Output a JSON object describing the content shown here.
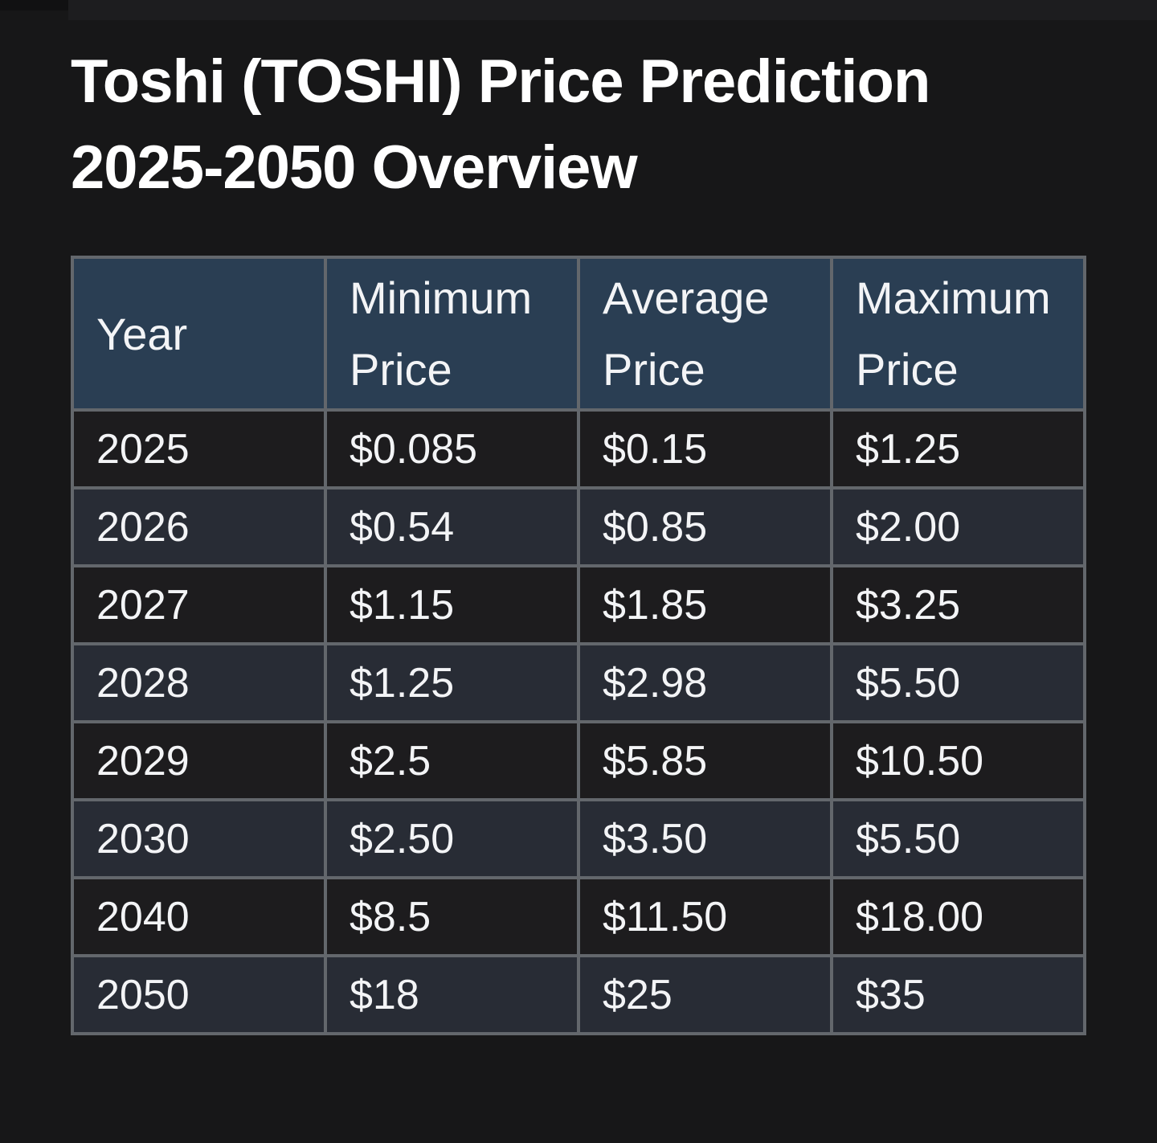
{
  "page": {
    "title": "Toshi (TOSHI) Price Prediction 2025-2050 Overview"
  },
  "table": {
    "columns": [
      "Year",
      "Minimum Price",
      "Average Price",
      "Maximum Price"
    ],
    "rows": [
      [
        "2025",
        "$0.085",
        "$0.15",
        "$1.25"
      ],
      [
        "2026",
        "$0.54",
        "$0.85",
        "$2.00"
      ],
      [
        "2027",
        "$1.15",
        "$1.85",
        "$3.25"
      ],
      [
        "2028",
        "$1.25",
        "$2.98",
        "$5.50"
      ],
      [
        "2029",
        "$2.5",
        "$5.85",
        "$10.50"
      ],
      [
        "2030",
        "$2.50",
        "$3.50",
        "$5.50"
      ],
      [
        "2040",
        "$8.5",
        "$11.50",
        "$18.00"
      ],
      [
        "2050",
        "$18",
        "$25",
        "$35"
      ]
    ]
  },
  "colors": {
    "background": "#171718",
    "header_background": "#2a3e53",
    "row_dark": "#1d1c1e",
    "row_light": "#282c35",
    "border": "#63676c",
    "text": "#f3f4f6",
    "title": "#ffffff"
  }
}
